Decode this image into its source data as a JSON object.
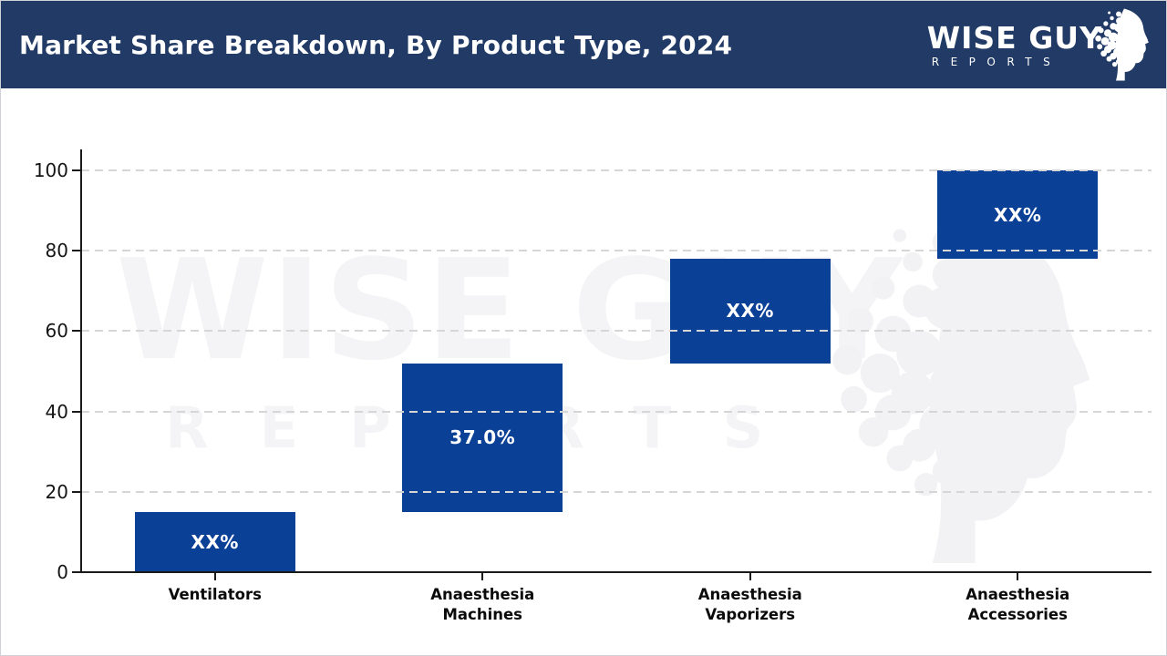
{
  "header": {
    "title": "Market Share Breakdown, By Product Type, 2024",
    "logo": {
      "wordmark": "WISE GUY",
      "subtext": "REPORTS"
    }
  },
  "watermark": {
    "wordmark": "WISE GUY",
    "subtext": "REPORTS"
  },
  "chart_data": {
    "type": "bar",
    "subtype": "floating-segment waterfall of market share",
    "title": "Market Share Breakdown, By Product Type, 2024",
    "categories": [
      "Ventilators",
      "Anaesthesia Machines",
      "Anaesthesia Vaporizers",
      "Anaesthesia Accessories"
    ],
    "category_display": [
      "Ventilators",
      "Anaesthesia\nMachines",
      "Anaesthesia\nVaporizers",
      "Anaesthesia\nAccessories"
    ],
    "segments": [
      {
        "category": "Ventilators",
        "start": 0,
        "end": 15,
        "height": 15,
        "value_label": "XX%"
      },
      {
        "category": "Anaesthesia Machines",
        "start": 15,
        "end": 52,
        "height": 37,
        "value_label": "37.0%"
      },
      {
        "category": "Anaesthesia Vaporizers",
        "start": 52,
        "end": 78,
        "height": 26,
        "value_label": "XX%"
      },
      {
        "category": "Anaesthesia Accessories",
        "start": 78,
        "end": 100,
        "height": 22,
        "value_label": "XX%"
      }
    ],
    "xlabel": "",
    "ylabel": "",
    "ylim": [
      0,
      100
    ],
    "yticks": [
      0,
      20,
      40,
      60,
      80,
      100
    ],
    "grid": {
      "axis": "y",
      "style": "dashed",
      "drawn_over_bars": true
    },
    "legend": "none",
    "bar_width_frac": 0.6,
    "colors": {
      "bar": "#0b4097",
      "value_label": "#ffffff",
      "grid": "#d6d6d6",
      "axis": "#1a1a1a",
      "tick_label": "#151515",
      "header_bg": "#213a66",
      "header_text": "#ffffff",
      "watermark": "#f4f4f6"
    }
  }
}
